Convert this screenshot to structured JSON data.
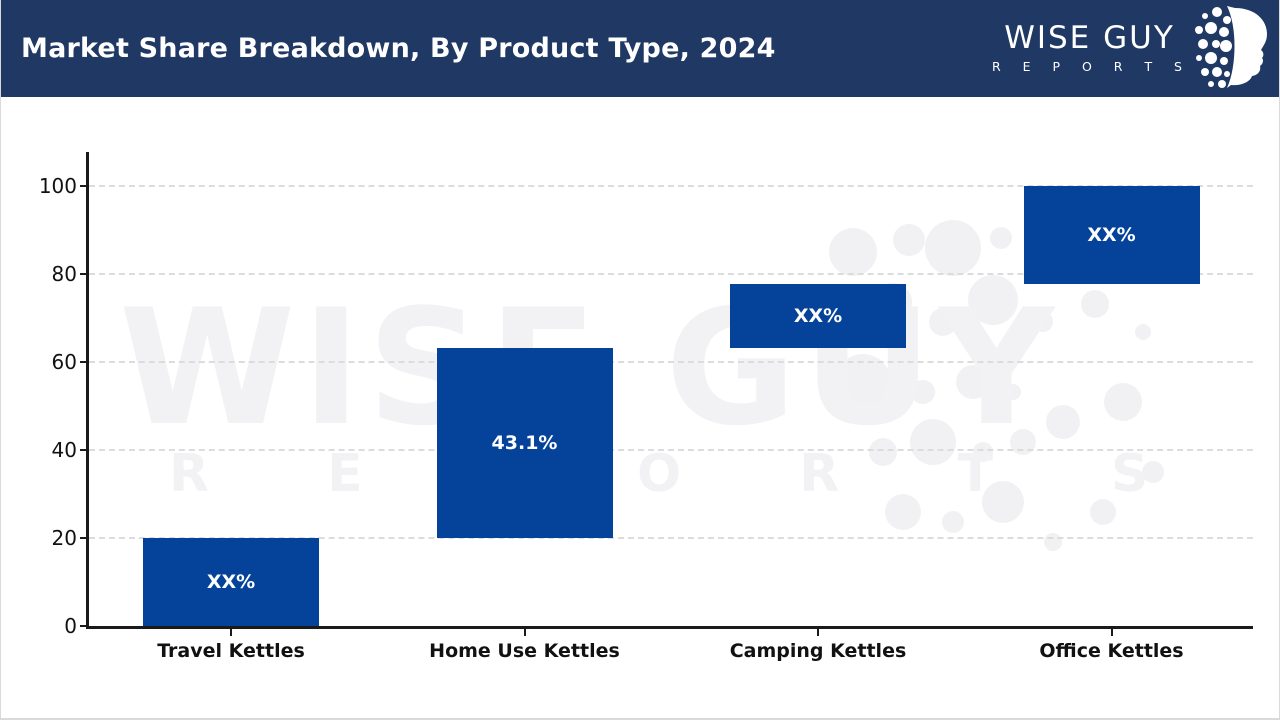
{
  "header": {
    "title": "Market Share Breakdown, By Product Type, 2024",
    "bg_color": "#1F3864",
    "logo": {
      "name": "WISE GUY",
      "subname": "R E P O R T S",
      "icon": "dotted-head-profile-icon"
    }
  },
  "watermark": {
    "line1": "WISE GUY",
    "line2": "R E P O R T S"
  },
  "chart_data": {
    "type": "bar",
    "subtype": "floating-segment-waterfall",
    "title": "Market Share Breakdown, By Product Type, 2024",
    "categories": [
      "Travel Kettles",
      "Home Use Kettles",
      "Camping Kettles",
      "Office Kettles"
    ],
    "segments": [
      {
        "category": "Travel Kettles",
        "start": 0,
        "end": 20,
        "value": 20,
        "label": "XX%"
      },
      {
        "category": "Home Use Kettles",
        "start": 20,
        "end": 63.1,
        "value": 43.1,
        "label": "43.1%"
      },
      {
        "category": "Camping Kettles",
        "start": 63.1,
        "end": 77.7,
        "value": 14.6,
        "label": "XX%"
      },
      {
        "category": "Office Kettles",
        "start": 77.7,
        "end": 100,
        "value": 22.3,
        "label": "XX%"
      }
    ],
    "values": [
      20,
      43.1,
      14.6,
      22.3
    ],
    "labels": [
      "XX%",
      "43.1%",
      "XX%",
      "XX%"
    ],
    "xlabel": "",
    "ylabel": "",
    "ylim": [
      0,
      100
    ],
    "yticks": [
      0,
      20,
      40,
      60,
      80,
      100
    ],
    "grid": "horizontal-dashed",
    "legend": false,
    "bar_color": "#05439A"
  },
  "colors": {
    "header_bg": "#1F3864",
    "bar": "#05439A",
    "grid": "#DCDCDC",
    "axis": "#1A1A1A",
    "watermark": "#F2F2F4",
    "border": "#D9D9D9"
  }
}
